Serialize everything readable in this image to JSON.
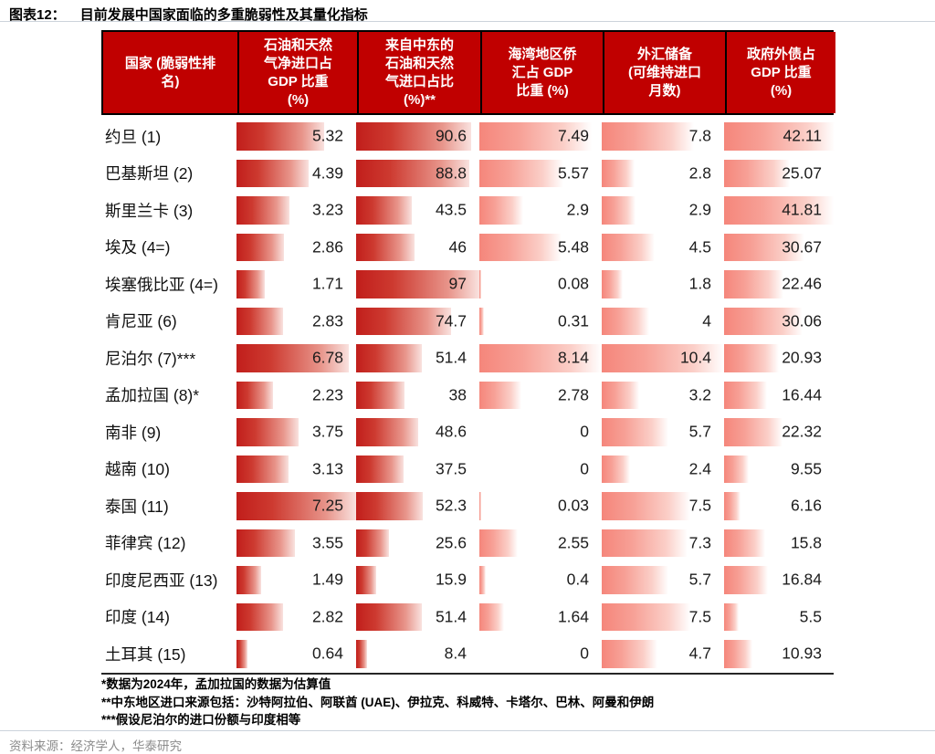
{
  "title": {
    "label": "图表12：",
    "text": "目前发展中国家面临的多重脆弱性及其量化指标"
  },
  "table": {
    "headers": [
      {
        "lines": [
          "国家 (脆弱性排",
          "名)"
        ]
      },
      {
        "lines": [
          "石油和天然",
          "气净进口占",
          "GDP 比重",
          "(%)"
        ]
      },
      {
        "lines": [
          "来自中东的",
          "石油和天然",
          "气进口占比",
          "(%)**"
        ]
      },
      {
        "lines": [
          "海湾地区侨",
          "汇占 GDP",
          "比重 (%)"
        ]
      },
      {
        "lines": [
          "外汇储备",
          "(可维持进口",
          "月数)"
        ]
      },
      {
        "lines": [
          "政府外债占",
          "GDP 比重",
          "(%)"
        ]
      }
    ],
    "rows": [
      {
        "country": "约旦 (1)",
        "values": [
          "5.32",
          "90.6",
          "7.49",
          "7.8",
          "42.11"
        ]
      },
      {
        "country": "巴基斯坦 (2)",
        "values": [
          "4.39",
          "88.8",
          "5.57",
          "2.8",
          "25.07"
        ]
      },
      {
        "country": "斯里兰卡 (3)",
        "values": [
          "3.23",
          "43.5",
          "2.9",
          "2.9",
          "41.81"
        ]
      },
      {
        "country": "埃及 (4=)",
        "values": [
          "2.86",
          "46",
          "5.48",
          "4.5",
          "30.67"
        ]
      },
      {
        "country": "埃塞俄比亚 (4=)",
        "values": [
          "1.71",
          "97",
          "0.08",
          "1.8",
          "22.46"
        ]
      },
      {
        "country": "肯尼亚 (6)",
        "values": [
          "2.83",
          "74.7",
          "0.31",
          "4",
          "30.06"
        ]
      },
      {
        "country": "尼泊尔 (7)***",
        "values": [
          "6.78",
          "51.4",
          "8.14",
          "10.4",
          "20.93"
        ]
      },
      {
        "country": "孟加拉国 (8)*",
        "values": [
          "2.23",
          "38",
          "2.78",
          "3.2",
          "16.44"
        ]
      },
      {
        "country": "南非 (9)",
        "values": [
          "3.75",
          "48.6",
          "0",
          "5.7",
          "22.32"
        ]
      },
      {
        "country": "越南 (10)",
        "values": [
          "3.13",
          "37.5",
          "0",
          "2.4",
          "9.55"
        ]
      },
      {
        "country": "泰国 (11)",
        "values": [
          "7.25",
          "52.3",
          "0.03",
          "7.5",
          "6.16"
        ]
      },
      {
        "country": "菲律宾 (12)",
        "values": [
          "3.55",
          "25.6",
          "2.55",
          "7.3",
          "15.8"
        ]
      },
      {
        "country": "印度尼西亚 (13)",
        "values": [
          "1.49",
          "15.9",
          "0.4",
          "5.7",
          "16.84"
        ]
      },
      {
        "country": "印度 (14)",
        "values": [
          "2.82",
          "51.4",
          "1.64",
          "7.5",
          "5.5"
        ]
      },
      {
        "country": "土耳其 (15)",
        "values": [
          "0.64",
          "8.4",
          "0",
          "4.7",
          "10.93"
        ]
      }
    ]
  },
  "footnotes": [
    "*数据为2024年，孟加拉国的数据为估算值",
    "**中东地区进口来源包括：沙特阿拉伯、阿联酋 (UAE)、伊拉克、科威特、卡塔尔、巴林、阿曼和伊朗",
    "***假设尼泊尔的进口份额与印度相等"
  ],
  "source": "资料来源：经济学人，华泰研究",
  "colors": {
    "header_bg": "#c00000",
    "header_text": "#ffffff",
    "header_border": "#000000",
    "bar_dark_red": "#c11e1b",
    "bar_light_red": "#f5867b",
    "divider": "#ccd3db",
    "source_text": "#8c8c8c",
    "body_text": "#1c1c1c"
  },
  "chart_data": {
    "type": "table",
    "title": "目前发展中国家面临的多重脆弱性及其量化指标",
    "figure_label": "图表12",
    "columns": [
      "国家 (脆弱性排名)",
      "石油和天然气净进口占 GDP 比重 (%)",
      "来自中东的石油和天然气进口占比 (%)**",
      "海湾地区侨汇占 GDP 比重 (%)",
      "外汇储备 (可维持进口月数)",
      "政府外债占 GDP 比重 (%)"
    ],
    "bar_style_by_column": [
      "none",
      "dark-red-gradient",
      "dark-red-gradient",
      "light-red-gradient",
      "light-red-gradient",
      "light-red-gradient"
    ],
    "bar_scaling": "bar length proportional to value / column max",
    "rows": [
      {
        "country": "约旦",
        "rank": "1",
        "oil_gas_net_imports_pct_gdp": 5.32,
        "mideast_import_share_pct": 90.6,
        "gulf_remittances_pct_gdp": 7.49,
        "fx_reserves_months": 7.8,
        "govt_external_debt_pct_gdp": 42.11
      },
      {
        "country": "巴基斯坦",
        "rank": "2",
        "oil_gas_net_imports_pct_gdp": 4.39,
        "mideast_import_share_pct": 88.8,
        "gulf_remittances_pct_gdp": 5.57,
        "fx_reserves_months": 2.8,
        "govt_external_debt_pct_gdp": 25.07
      },
      {
        "country": "斯里兰卡",
        "rank": "3",
        "oil_gas_net_imports_pct_gdp": 3.23,
        "mideast_import_share_pct": 43.5,
        "gulf_remittances_pct_gdp": 2.9,
        "fx_reserves_months": 2.9,
        "govt_external_debt_pct_gdp": 41.81
      },
      {
        "country": "埃及",
        "rank": "4=",
        "oil_gas_net_imports_pct_gdp": 2.86,
        "mideast_import_share_pct": 46,
        "gulf_remittances_pct_gdp": 5.48,
        "fx_reserves_months": 4.5,
        "govt_external_debt_pct_gdp": 30.67
      },
      {
        "country": "埃塞俄比亚",
        "rank": "4=",
        "oil_gas_net_imports_pct_gdp": 1.71,
        "mideast_import_share_pct": 97,
        "gulf_remittances_pct_gdp": 0.08,
        "fx_reserves_months": 1.8,
        "govt_external_debt_pct_gdp": 22.46
      },
      {
        "country": "肯尼亚",
        "rank": "6",
        "oil_gas_net_imports_pct_gdp": 2.83,
        "mideast_import_share_pct": 74.7,
        "gulf_remittances_pct_gdp": 0.31,
        "fx_reserves_months": 4,
        "govt_external_debt_pct_gdp": 30.06
      },
      {
        "country": "尼泊尔",
        "rank": "7",
        "oil_gas_net_imports_pct_gdp": 6.78,
        "mideast_import_share_pct": 51.4,
        "gulf_remittances_pct_gdp": 8.14,
        "fx_reserves_months": 10.4,
        "govt_external_debt_pct_gdp": 20.93
      },
      {
        "country": "孟加拉国",
        "rank": "8",
        "oil_gas_net_imports_pct_gdp": 2.23,
        "mideast_import_share_pct": 38,
        "gulf_remittances_pct_gdp": 2.78,
        "fx_reserves_months": 3.2,
        "govt_external_debt_pct_gdp": 16.44
      },
      {
        "country": "南非",
        "rank": "9",
        "oil_gas_net_imports_pct_gdp": 3.75,
        "mideast_import_share_pct": 48.6,
        "gulf_remittances_pct_gdp": 0,
        "fx_reserves_months": 5.7,
        "govt_external_debt_pct_gdp": 22.32
      },
      {
        "country": "越南",
        "rank": "10",
        "oil_gas_net_imports_pct_gdp": 3.13,
        "mideast_import_share_pct": 37.5,
        "gulf_remittances_pct_gdp": 0,
        "fx_reserves_months": 2.4,
        "govt_external_debt_pct_gdp": 9.55
      },
      {
        "country": "泰国",
        "rank": "11",
        "oil_gas_net_imports_pct_gdp": 7.25,
        "mideast_import_share_pct": 52.3,
        "gulf_remittances_pct_gdp": 0.03,
        "fx_reserves_months": 7.5,
        "govt_external_debt_pct_gdp": 6.16
      },
      {
        "country": "菲律宾",
        "rank": "12",
        "oil_gas_net_imports_pct_gdp": 3.55,
        "mideast_import_share_pct": 25.6,
        "gulf_remittances_pct_gdp": 2.55,
        "fx_reserves_months": 7.3,
        "govt_external_debt_pct_gdp": 15.8
      },
      {
        "country": "印度尼西亚",
        "rank": "13",
        "oil_gas_net_imports_pct_gdp": 1.49,
        "mideast_import_share_pct": 15.9,
        "gulf_remittances_pct_gdp": 0.4,
        "fx_reserves_months": 5.7,
        "govt_external_debt_pct_gdp": 16.84
      },
      {
        "country": "印度",
        "rank": "14",
        "oil_gas_net_imports_pct_gdp": 2.82,
        "mideast_import_share_pct": 51.4,
        "gulf_remittances_pct_gdp": 1.64,
        "fx_reserves_months": 7.5,
        "govt_external_debt_pct_gdp": 5.5
      },
      {
        "country": "土耳其",
        "rank": "15",
        "oil_gas_net_imports_pct_gdp": 0.64,
        "mideast_import_share_pct": 8.4,
        "gulf_remittances_pct_gdp": 0,
        "fx_reserves_months": 4.7,
        "govt_external_debt_pct_gdp": 10.93
      }
    ]
  }
}
